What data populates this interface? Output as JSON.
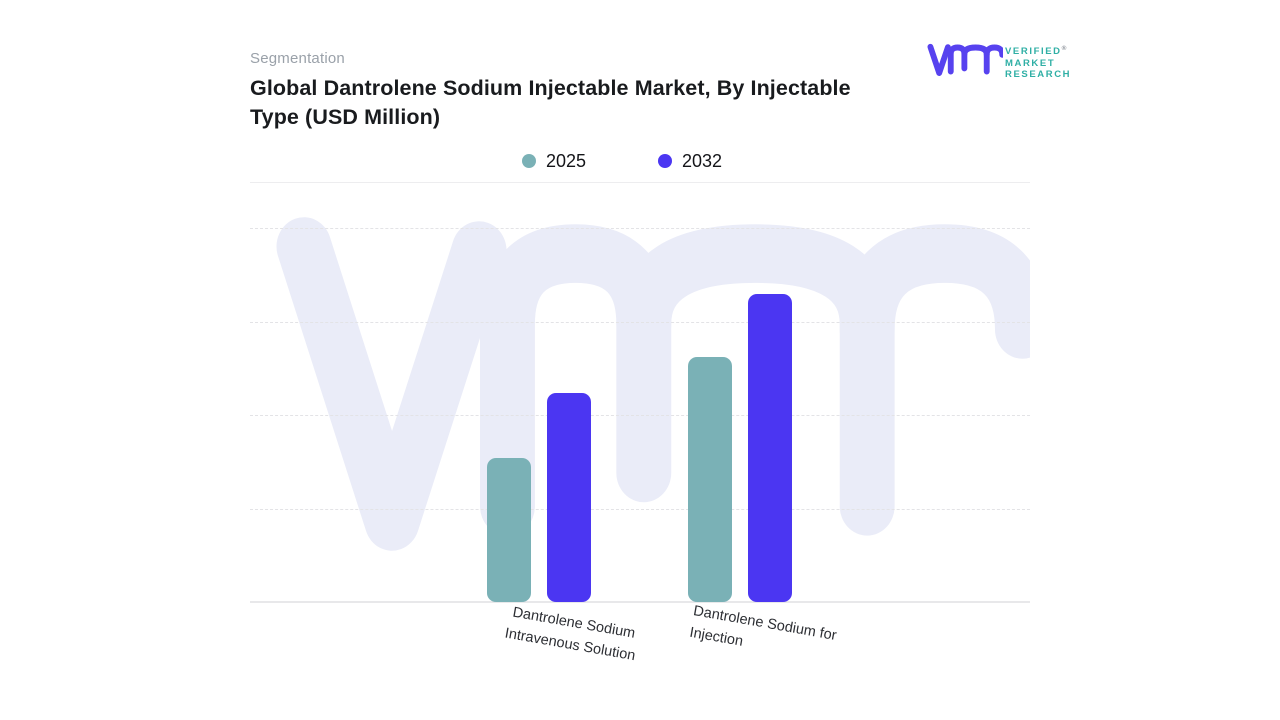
{
  "header": {
    "eyebrow": "Segmentation",
    "title_lines": [
      "Global Dantrolene Sodium Injectable Market, By Injectable",
      "Type (USD Million)"
    ]
  },
  "logo": {
    "name": "Verified Market Research",
    "lines": [
      "VERIFIED",
      "MARKET",
      "RESEARCH"
    ],
    "registered_mark": "®",
    "mark_color": "#5742ef",
    "text_color": "#2fafa5"
  },
  "legend": [
    {
      "label": "2025",
      "color": "#7ab1b6"
    },
    {
      "label": "2032",
      "color": "#4b36f2"
    }
  ],
  "chart_data": {
    "type": "bar",
    "title": "Global Dantrolene Sodium Injectable Market, By Injectable Type (USD Million)",
    "unit": "USD Million",
    "categories": [
      "Dantrolene Sodium Intravenous Solution",
      "Dantrolene Sodium for Injection"
    ],
    "categories_lines": [
      [
        "Dantrolene Sodium",
        "Intravenous Solution"
      ],
      [
        "Dantrolene Sodium for",
        "Injection"
      ]
    ],
    "series": [
      {
        "name": "2025",
        "color": "#7ab1b6",
        "values_pct_of_axis": [
          38.5,
          65.5
        ]
      },
      {
        "name": "2032",
        "color": "#4b36f2",
        "values_pct_of_axis": [
          55.9,
          82.4
        ]
      }
    ],
    "xlabel": "",
    "ylabel": "",
    "value_axis": {
      "tick_labels_visible": false,
      "gridlines_pct": [
        25,
        50,
        75,
        100
      ],
      "baseline_pct": 0
    },
    "grid": "dashed-horizontal",
    "legend_position": "top-center",
    "watermark": "vmr",
    "note": "No numeric axis labels are shown in the figure; bar values estimated as percent of the top gridline."
  }
}
